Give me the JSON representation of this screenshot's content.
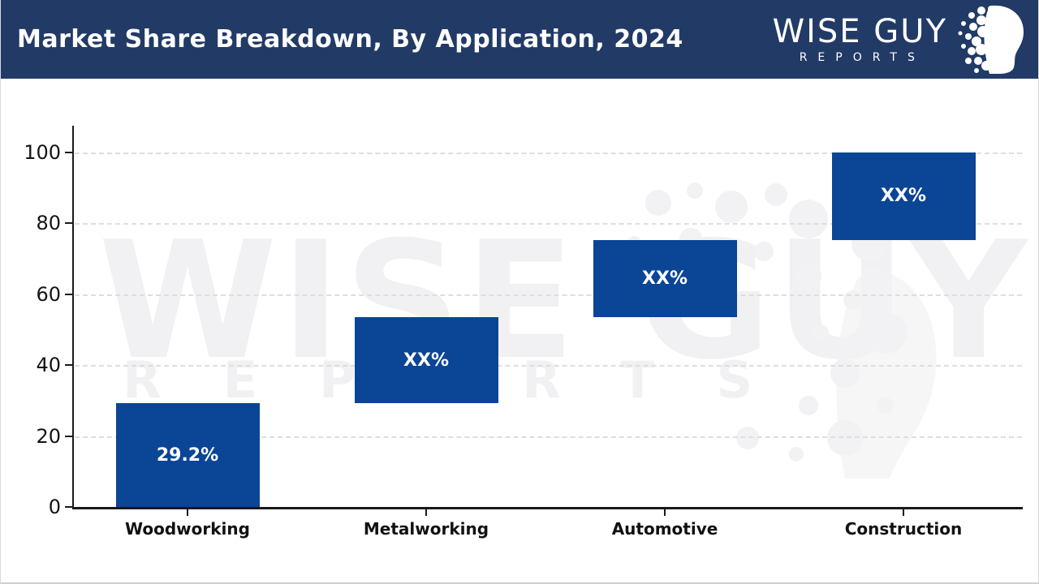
{
  "header": {
    "title": "Market Share Breakdown, By Application, 2024",
    "logo": {
      "name": "WISE GUY",
      "sub": "REPORTS"
    }
  },
  "watermark": {
    "line1": "WISE GUY",
    "line2": "REPORTS"
  },
  "chart_data": {
    "type": "bar",
    "subtype": "waterfall",
    "title": "Market Share Breakdown, By Application, 2024",
    "categories": [
      "Woodworking",
      "Metalworking",
      "Automotive",
      "Construction"
    ],
    "segments": [
      {
        "category": "Woodworking",
        "start": 0,
        "end": 29.2,
        "label": "29.2%"
      },
      {
        "category": "Metalworking",
        "start": 29.2,
        "end": 53.5,
        "label": "XX%"
      },
      {
        "category": "Automotive",
        "start": 53.5,
        "end": 75.3,
        "label": "XX%"
      },
      {
        "category": "Construction",
        "start": 75.3,
        "end": 100,
        "label": "XX%"
      }
    ],
    "ylim": [
      0,
      100
    ],
    "yticks": [
      0,
      20,
      40,
      60,
      80,
      100
    ],
    "grid": "horizontal-dashed",
    "legend": "none",
    "colors": {
      "bar": "#0a4596",
      "bar_label": "#ffffff",
      "header_bg": "#223a66",
      "grid": "#dedede",
      "axis": "#1a1a1a",
      "watermark": "#f1f1f3"
    }
  }
}
